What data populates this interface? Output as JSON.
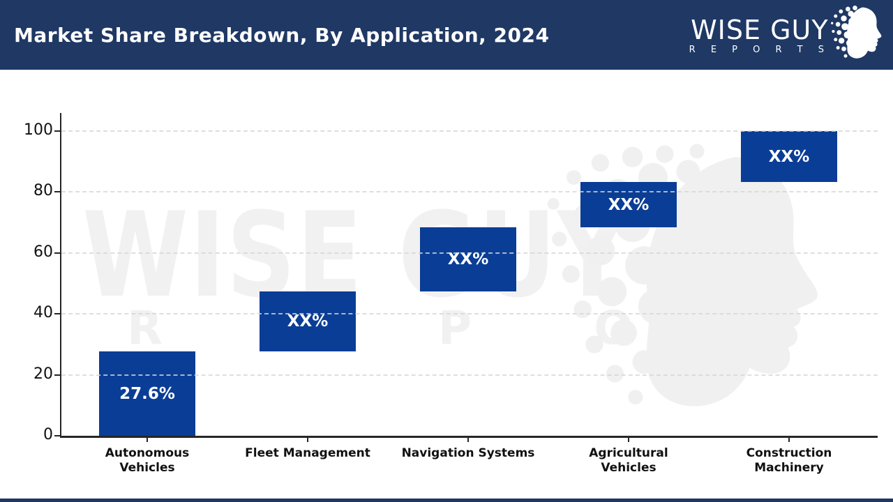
{
  "header": {
    "title": "Market Share Breakdown, By Application, 2024",
    "logo": {
      "brand": "WISE GUY",
      "sub": "R E P O R T S"
    }
  },
  "watermark": {
    "brand": "WISE GUY",
    "sub": "R E P O R T S"
  },
  "chart_data": {
    "type": "bar",
    "variant": "floating-waterfall",
    "title": "Market Share Breakdown, By Application, 2024",
    "categories": [
      "Autonomous Vehicles",
      "Fleet Management",
      "Navigation Systems",
      "Agricultural Vehicles",
      "Construction Machinery"
    ],
    "category_lines": [
      [
        "Autonomous",
        "Vehicles"
      ],
      [
        "Fleet Management"
      ],
      [
        "Navigation Systems"
      ],
      [
        "Agricultural",
        "Vehicles"
      ],
      [
        "Construction",
        "Machinery"
      ]
    ],
    "bars": [
      {
        "category": "Autonomous Vehicles",
        "start": 0,
        "end": 27.6,
        "label": "27.6%"
      },
      {
        "category": "Fleet Management",
        "start": 27.6,
        "end": 47.4,
        "label": "XX%"
      },
      {
        "category": "Navigation Systems",
        "start": 47.4,
        "end": 68.5,
        "label": "XX%"
      },
      {
        "category": "Agricultural Vehicles",
        "start": 68.5,
        "end": 83.2,
        "label": "XX%"
      },
      {
        "category": "Construction Machinery",
        "start": 83.2,
        "end": 100,
        "label": "XX%"
      }
    ],
    "yticks": [
      0,
      20,
      40,
      60,
      80,
      100
    ],
    "ylim": [
      0,
      105
    ],
    "xlabel": "",
    "ylabel": "",
    "grid": "horizontal-dashed",
    "legend": "none",
    "colors": {
      "bar": "#0A3D96",
      "grid": "#D6D6D6",
      "axis": "#262626",
      "bar_label": "#FFFFFF",
      "tick_text": "#111111",
      "header_bg": "#1F3864",
      "watermark": "#F1F1F1"
    }
  }
}
